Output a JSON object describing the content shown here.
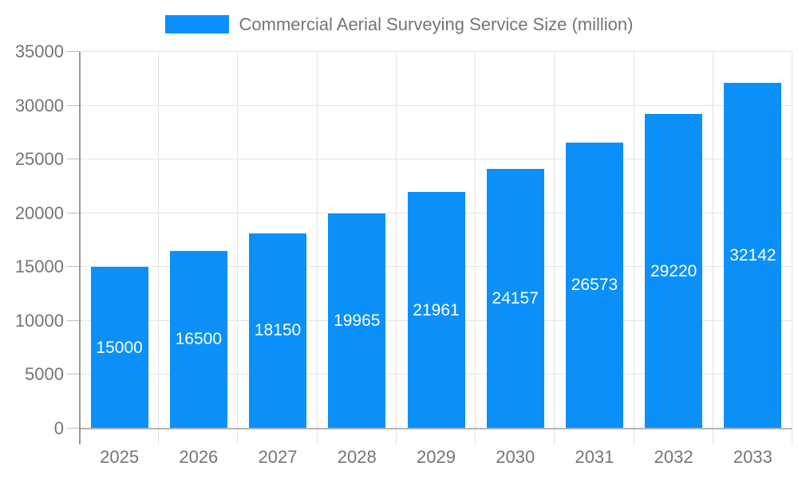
{
  "chart_data": {
    "type": "bar",
    "title": "Commercial Aerial Surveying Service Size (million)",
    "categories": [
      "2025",
      "2026",
      "2027",
      "2028",
      "2029",
      "2030",
      "2031",
      "2032",
      "2033"
    ],
    "series": [
      {
        "name": "Commercial Aerial Surveying Service Size (million)",
        "values": [
          15000,
          16500,
          18150,
          19965,
          21961,
          24157,
          26573,
          29220,
          32142
        ]
      }
    ],
    "xlabel": "",
    "ylabel": "",
    "ylim": [
      0,
      35000
    ],
    "ytick_interval": 5000,
    "yticks": [
      "0",
      "5000",
      "10000",
      "15000",
      "20000",
      "25000",
      "30000",
      "35000"
    ],
    "grid": true,
    "legend_position": "top",
    "value_label_position": "inside-center",
    "colors": {
      "bar": "#0b90fa",
      "label_text": "#757575",
      "bar_value_text": "#ffffff",
      "gridline": "#e3e3e3",
      "axis_line": "#999999",
      "x_axis_line": "#b3b3b3",
      "tick": "#bdbdbd",
      "background": "#ffffff"
    }
  }
}
